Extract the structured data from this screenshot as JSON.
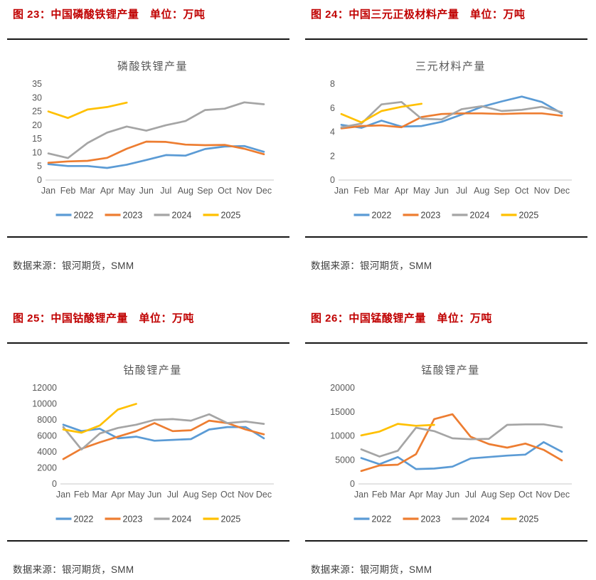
{
  "colors": {
    "caption_red": "#c00000",
    "axis_text": "#595959",
    "axis_line": "#c9c9c9",
    "legend_text": "#404040",
    "box_border": "#161616",
    "series_2022": "#5B9BD5",
    "series_2023": "#ED7D31",
    "series_2024": "#A5A5A5",
    "series_2025": "#FFC000"
  },
  "panels": [
    {
      "figure_caption": "图 23：中国磷酸铁锂产量　单位：万吨",
      "source": "数据来源：银河期货，SMM"
    },
    {
      "figure_caption": "图 24：中国三元正极材料产量　单位：万吨",
      "source": "数据来源：银河期货，SMM"
    },
    {
      "figure_caption": "图 25：中国钴酸锂产量　单位：万吨",
      "source": "数据来源：银河期货，SMM"
    },
    {
      "figure_caption": "图 26：中国锰酸锂产量　单位：万吨",
      "source": "数据来源：银河期货，SMM"
    }
  ],
  "chart_data": [
    {
      "type": "line",
      "title": "磷酸铁锂产量",
      "categories": [
        "Jan",
        "Feb",
        "Mar",
        "Apr",
        "May",
        "Jun",
        "Jul",
        "Aug",
        "Sep",
        "Oct",
        "Nov",
        "Dec"
      ],
      "ylim": [
        0,
        35
      ],
      "yticks": [
        0,
        5,
        10,
        15,
        20,
        25,
        30,
        35
      ],
      "grid": false,
      "legend_position": "bottom",
      "series": [
        {
          "name": "2022",
          "color": "#5B9BD5",
          "values": [
            5.8,
            5.1,
            5.1,
            4.4,
            5.6,
            7.3,
            9.1,
            8.9,
            11.3,
            12.2,
            12.4,
            10.3
          ]
        },
        {
          "name": "2023",
          "color": "#ED7D31",
          "values": [
            6.3,
            6.8,
            7.0,
            8.1,
            11.4,
            14.0,
            13.9,
            12.9,
            12.7,
            12.8,
            11.4,
            9.4
          ]
        },
        {
          "name": "2024",
          "color": "#A5A5A5",
          "values": [
            9.7,
            8.0,
            13.5,
            17.3,
            19.5,
            18.0,
            20.0,
            21.5,
            25.5,
            26.0,
            28.3,
            27.6
          ]
        },
        {
          "name": "2025",
          "color": "#FFC000",
          "values": [
            25.0,
            22.6,
            25.7,
            26.6,
            28.2
          ]
        }
      ]
    },
    {
      "type": "line",
      "title": "三元材料产量",
      "categories": [
        "Jan",
        "Feb",
        "Mar",
        "Apr",
        "May",
        "Jun",
        "Jul",
        "Aug",
        "Sep",
        "Oct",
        "Nov",
        "Dec"
      ],
      "ylim": [
        0,
        8
      ],
      "yticks": [
        0,
        2,
        4,
        6,
        8
      ],
      "grid": false,
      "legend_position": "bottom",
      "series": [
        {
          "name": "2022",
          "color": "#5B9BD5",
          "values": [
            4.6,
            4.35,
            4.95,
            4.45,
            4.5,
            4.85,
            5.45,
            6.1,
            6.55,
            6.95,
            6.5,
            5.55
          ]
        },
        {
          "name": "2023",
          "color": "#ED7D31",
          "values": [
            4.3,
            4.5,
            4.55,
            4.4,
            5.25,
            5.5,
            5.55,
            5.55,
            5.5,
            5.55,
            5.55,
            5.35
          ]
        },
        {
          "name": "2024",
          "color": "#A5A5A5",
          "values": [
            4.4,
            4.7,
            6.3,
            6.5,
            5.1,
            5.05,
            5.9,
            6.15,
            5.75,
            5.85,
            6.1,
            5.65
          ]
        },
        {
          "name": "2025",
          "color": "#FFC000",
          "values": [
            5.5,
            4.8,
            5.75,
            6.1,
            6.35
          ]
        }
      ]
    },
    {
      "type": "line",
      "title": "钴酸锂产量",
      "categories": [
        "Jan",
        "Feb",
        "Mar",
        "Apr",
        "May",
        "Jun",
        "Jul",
        "Aug",
        "Sep",
        "Oct",
        "Nov",
        "Dec"
      ],
      "ylim": [
        0,
        12000
      ],
      "yticks": [
        0,
        2000,
        4000,
        6000,
        8000,
        10000,
        12000
      ],
      "grid": false,
      "legend_position": "bottom",
      "series": [
        {
          "name": "2022",
          "color": "#5B9BD5",
          "values": [
            7400,
            6600,
            6900,
            5700,
            5900,
            5400,
            5500,
            5600,
            6800,
            7100,
            7100,
            5700
          ]
        },
        {
          "name": "2023",
          "color": "#ED7D31",
          "values": [
            3100,
            4400,
            5200,
            5900,
            6600,
            7600,
            6600,
            6700,
            7900,
            7600,
            6800,
            6200
          ]
        },
        {
          "name": "2024",
          "color": "#A5A5A5",
          "values": [
            7100,
            4300,
            6300,
            7000,
            7400,
            8000,
            8100,
            7900,
            8700,
            7600,
            7800,
            7500
          ]
        },
        {
          "name": "2025",
          "color": "#FFC000",
          "values": [
            6800,
            6400,
            7300,
            9300,
            10000
          ]
        }
      ]
    },
    {
      "type": "line",
      "title": "锰酸锂产量",
      "categories": [
        "Jan",
        "Feb",
        "Mar",
        "Apr",
        "May",
        "Jun",
        "Jul",
        "Aug",
        "Sep",
        "Oct",
        "Nov",
        "Dec"
      ],
      "ylim": [
        0,
        20000
      ],
      "yticks": [
        0,
        5000,
        10000,
        15000,
        20000
      ],
      "grid": false,
      "legend_position": "bottom",
      "series": [
        {
          "name": "2022",
          "color": "#5B9BD5",
          "values": [
            5400,
            4100,
            5600,
            3100,
            3200,
            3600,
            5300,
            5600,
            5900,
            6100,
            8700,
            6700
          ]
        },
        {
          "name": "2023",
          "color": "#ED7D31",
          "values": [
            2700,
            3850,
            4000,
            6200,
            13500,
            14500,
            9800,
            8300,
            7550,
            8400,
            7100,
            4900
          ]
        },
        {
          "name": "2024",
          "color": "#A5A5A5",
          "values": [
            7200,
            5700,
            6900,
            11700,
            11000,
            9500,
            9300,
            9400,
            12300,
            12400,
            12400,
            11800
          ]
        },
        {
          "name": "2025",
          "color": "#FFC000",
          "values": [
            10100,
            10900,
            12500,
            12100,
            12300
          ]
        }
      ]
    }
  ]
}
